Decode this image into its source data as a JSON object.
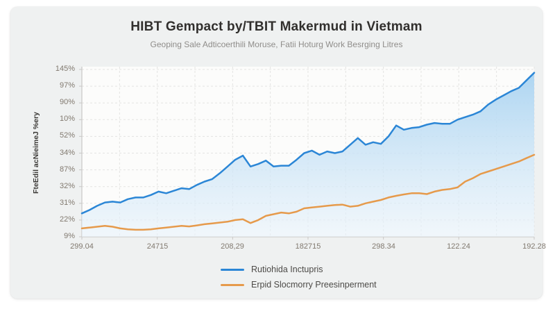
{
  "header": {
    "title": "HIBT Gempact by/TBIT Makermud in Vietmam",
    "subtitle": "Geoping Sale Adticoerthili Moruse, Fatii Hoturg Work Besrging Litres"
  },
  "chart_data": {
    "type": "area",
    "title": "HIBT Gempact by/TBIT Makermud in Vietmam",
    "subtitle": "Geoping Sale Adticoerthili Moruse, Fatii Hoturg Work Besrging Litres",
    "ylabel": "FteEdil acNieimeJ %ery",
    "xlabel": "",
    "grid": true,
    "legend_position": "bottom",
    "y_tick_labels": [
      "145%",
      "97%",
      "90%",
      "10%",
      "52%",
      "34%",
      "87%",
      "32%",
      "31%",
      "22%",
      "9%"
    ],
    "x_tick_labels": [
      "299.04",
      "24715",
      "208,29",
      "182715",
      "298.34",
      "122.24",
      "192.28"
    ],
    "values_unit": "fraction of plot height above x-axis (0 = bottom axis, 1 = top gridline)",
    "series": [
      {
        "name": "Rutiohida Inctupris",
        "color": "#2b86d6",
        "fill": true,
        "values": [
          0.14,
          0.16,
          0.185,
          0.205,
          0.21,
          0.205,
          0.225,
          0.235,
          0.235,
          0.25,
          0.27,
          0.26,
          0.275,
          0.29,
          0.285,
          0.31,
          0.33,
          0.345,
          0.38,
          0.42,
          0.46,
          0.485,
          0.42,
          0.435,
          0.455,
          0.42,
          0.425,
          0.425,
          0.46,
          0.5,
          0.515,
          0.49,
          0.51,
          0.5,
          0.51,
          0.55,
          0.59,
          0.55,
          0.565,
          0.555,
          0.6,
          0.665,
          0.64,
          0.65,
          0.655,
          0.67,
          0.68,
          0.675,
          0.675,
          0.7,
          0.715,
          0.73,
          0.75,
          0.79,
          0.82,
          0.845,
          0.87,
          0.89,
          0.935,
          0.98
        ]
      },
      {
        "name": "Erpid Slocmorry Preesinperment",
        "color": "#e69a4b",
        "fill": false,
        "values": [
          0.05,
          0.055,
          0.06,
          0.065,
          0.06,
          0.05,
          0.045,
          0.042,
          0.042,
          0.045,
          0.05,
          0.055,
          0.06,
          0.065,
          0.062,
          0.068,
          0.075,
          0.08,
          0.085,
          0.09,
          0.1,
          0.105,
          0.082,
          0.1,
          0.125,
          0.135,
          0.145,
          0.14,
          0.15,
          0.17,
          0.175,
          0.18,
          0.185,
          0.19,
          0.192,
          0.18,
          0.185,
          0.2,
          0.21,
          0.22,
          0.235,
          0.245,
          0.253,
          0.26,
          0.26,
          0.255,
          0.27,
          0.28,
          0.285,
          0.295,
          0.33,
          0.35,
          0.375,
          0.39,
          0.405,
          0.42,
          0.435,
          0.45,
          0.47,
          0.49
        ]
      }
    ],
    "colors": {
      "plot_bg": "#fcfcfb",
      "grid": "#e3e3e2",
      "axis": "#c9c8c6",
      "area_top": "#a9d3f1",
      "area_bottom": "#e9f3fb",
      "card_bg": "#eff1f1",
      "tick_text": "#81796f"
    }
  }
}
